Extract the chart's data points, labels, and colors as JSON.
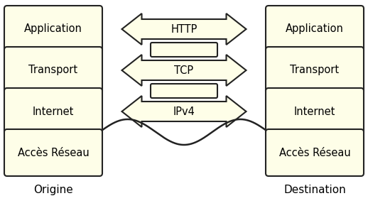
{
  "layers": [
    "Application",
    "Transport",
    "Internet",
    "Accès Réseau"
  ],
  "protocols": [
    "HTTP",
    "TCP",
    "IPv4"
  ],
  "left_label": "Origine",
  "right_label": "Destination",
  "box_fill": "#fefee8",
  "box_edge": "#222222",
  "arrow_fill": "#fefee8",
  "connector_fill": "#f0f0e8",
  "bg_color": "#ffffff",
  "font_size": 10.5,
  "label_font_size": 11
}
